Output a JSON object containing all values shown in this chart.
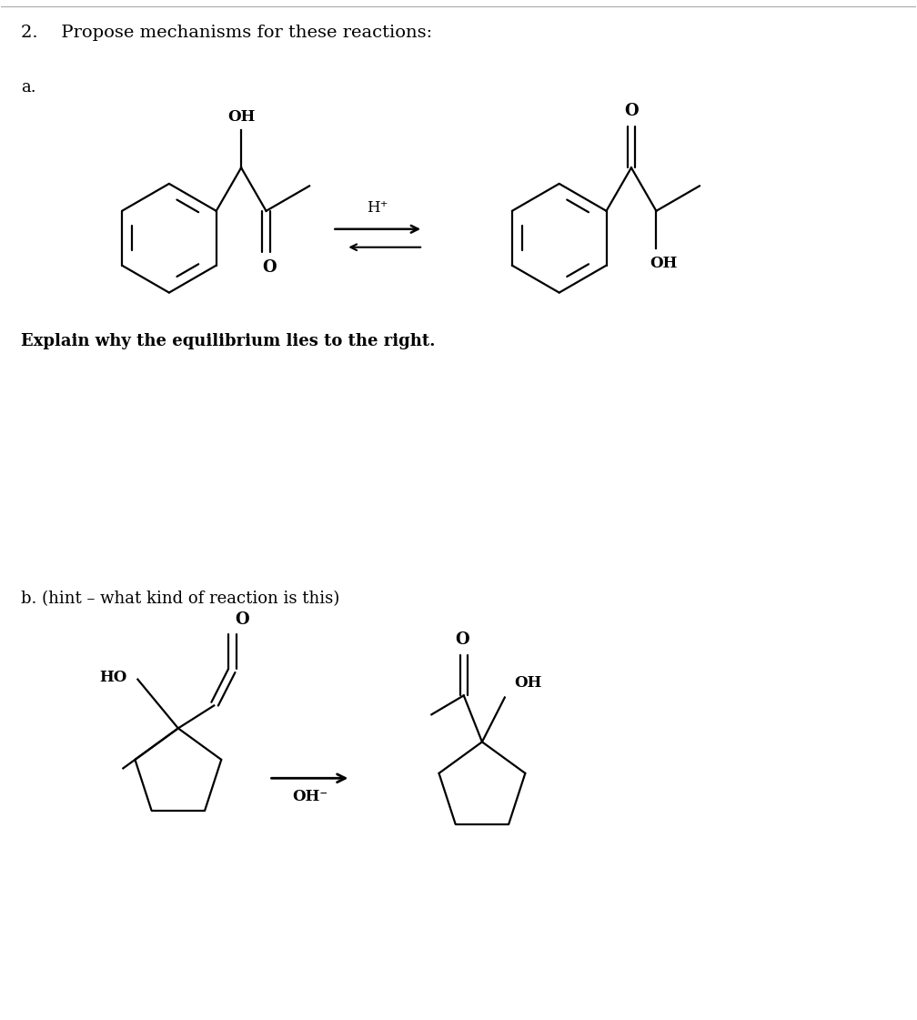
{
  "title_text": "2.  Propose mechanisms for these reactions:",
  "label_a": "a.",
  "label_b": "b. (hint – what kind of reaction is this)",
  "explain_text": "Explain why the equilibrium lies to the right.",
  "reagent_a": "H⁺",
  "reagent_b": "OH⁻",
  "bg_color": "#ffffff",
  "text_color": "#000000",
  "line_color": "#000000",
  "font_size_title": 14,
  "font_size_label": 13,
  "font_size_body": 13,
  "font_size_small": 11,
  "font_size_atom": 12
}
